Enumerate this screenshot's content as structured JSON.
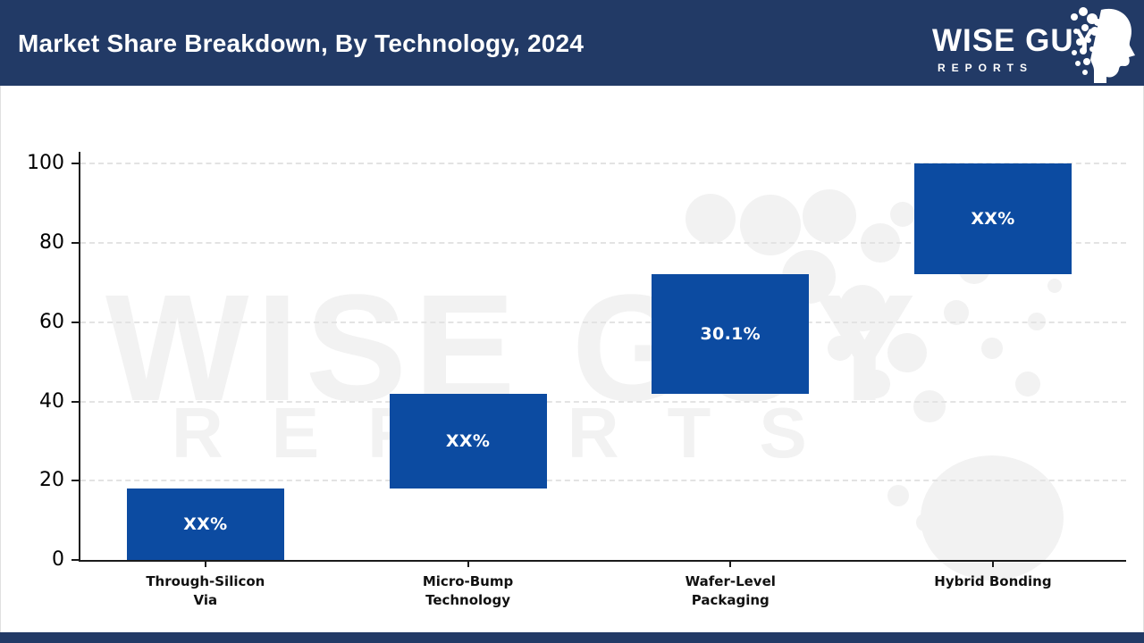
{
  "header": {
    "title": "Market Share Breakdown, By Technology, 2024"
  },
  "logo": {
    "name": "WISE GUY",
    "tagline": "REPORTS"
  },
  "watermark": {
    "line1": "WISE GUY",
    "line2": "REPORTS"
  },
  "chart_data": {
    "type": "bar",
    "variant": "waterfall",
    "title": "Market Share Breakdown, By Technology, 2024",
    "xlabel": "",
    "ylabel": "",
    "categories": [
      "Through-Silicon Via",
      "Micro-Bump Technology",
      "Wafer-Level Packaging",
      "Hybrid Bonding"
    ],
    "category_lines": [
      [
        "Through-Silicon",
        "Via"
      ],
      [
        "Micro-Bump",
        "Technology"
      ],
      [
        "Wafer-Level",
        "Packaging"
      ],
      [
        "Hybrid Bonding"
      ]
    ],
    "series": [
      {
        "name": "Market Share (%)",
        "segments": [
          {
            "category": "Through-Silicon Via",
            "start": 0,
            "end": 18,
            "label": "XX%"
          },
          {
            "category": "Micro-Bump Technology",
            "start": 18,
            "end": 42,
            "label": "XX%"
          },
          {
            "category": "Wafer-Level Packaging",
            "start": 42,
            "end": 72.1,
            "label": "30.1%"
          },
          {
            "category": "Hybrid Bonding",
            "start": 72.1,
            "end": 100,
            "label": "XX%"
          }
        ]
      }
    ],
    "yticks": [
      0,
      20,
      40,
      60,
      80,
      100
    ],
    "ylim": [
      0,
      103
    ],
    "grid": "horizontal-dashed",
    "legend": "none"
  },
  "colors": {
    "header_bg": "#223a66",
    "footer_bg": "#223a66",
    "bar": "#0c4ba1",
    "bar_label": "#ffffff",
    "axis": "#1a1a1a",
    "gridline": "#e3e3e3",
    "watermark": "#f2f2f2",
    "background": "#ffffff"
  }
}
